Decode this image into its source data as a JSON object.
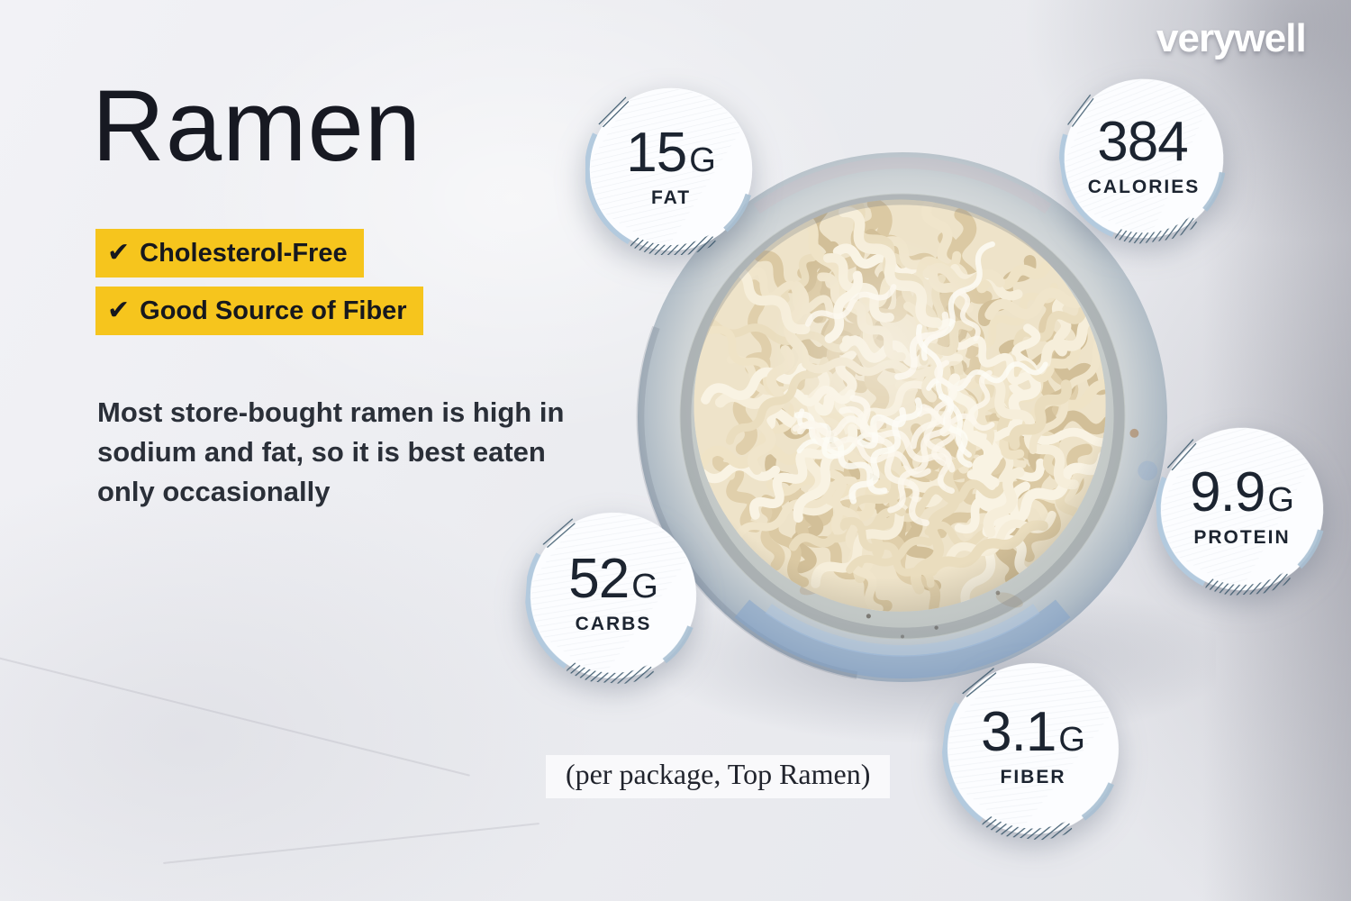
{
  "brand": {
    "logo_text": "verywell"
  },
  "title": "Ramen",
  "highlights": [
    {
      "icon": "check-icon",
      "glyph": "✔",
      "label": "Cholesterol-Free"
    },
    {
      "icon": "check-icon",
      "glyph": "✔",
      "label": "Good Source of Fiber"
    }
  ],
  "description": "Most store-bought ramen is high in sodium and fat, so it is best eaten only occasionally",
  "serving_note": "(per package, Top Ramen)",
  "nutrition_badges": [
    {
      "value": "15",
      "unit": "G",
      "label": "FAT"
    },
    {
      "value": "384",
      "unit": "",
      "label": "CALORIES"
    },
    {
      "value": "52",
      "unit": "G",
      "label": "CARBS"
    },
    {
      "value": "9.9",
      "unit": "G",
      "label": "PROTEIN"
    },
    {
      "value": "3.1",
      "unit": "G",
      "label": "FIBER"
    }
  ],
  "photo": {
    "subject": "Bowl of plain cooked ramen noodles on a white marble surface"
  },
  "colors": {
    "accent_yellow": "#F6C51D",
    "hatch_blue": "#3A576B",
    "arc_light_blue": "#B3CADE",
    "text_dark": "#1C2430"
  }
}
